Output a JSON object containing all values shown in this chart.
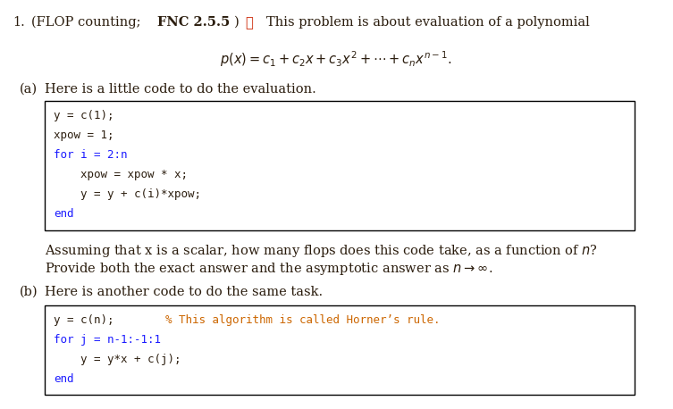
{
  "background_color": "#ffffff",
  "fig_width": 7.53,
  "fig_height": 4.58,
  "dpi": 100,
  "body_color": "#2b1d0e",
  "code_black_color": "#2b1d0e",
  "code_blue_color": "#1a1aff",
  "code_comment_color": "#cc6600",
  "pencil_color": "#cc2200",
  "body_font_size": 10.5,
  "code_font_size": 9.0,
  "code_a_lines": [
    "y = c(1);",
    "xpow = 1;",
    "for i = 2:n",
    "    xpow = xpow * x;",
    "    y = y + c(i)*xpow;",
    "end"
  ],
  "code_a_colors": [
    "body",
    "body",
    "blue",
    "body",
    "body",
    "blue"
  ],
  "code_b_line1a": "y = c(n);",
  "code_b_line1b": "      % This algorithm is called Horner’s rule.",
  "code_b_rest": [
    "for j = n-1:-1:1",
    "    y = y*x + c(j);",
    "end"
  ],
  "code_b_rest_colors": [
    "blue",
    "body",
    "blue"
  ]
}
